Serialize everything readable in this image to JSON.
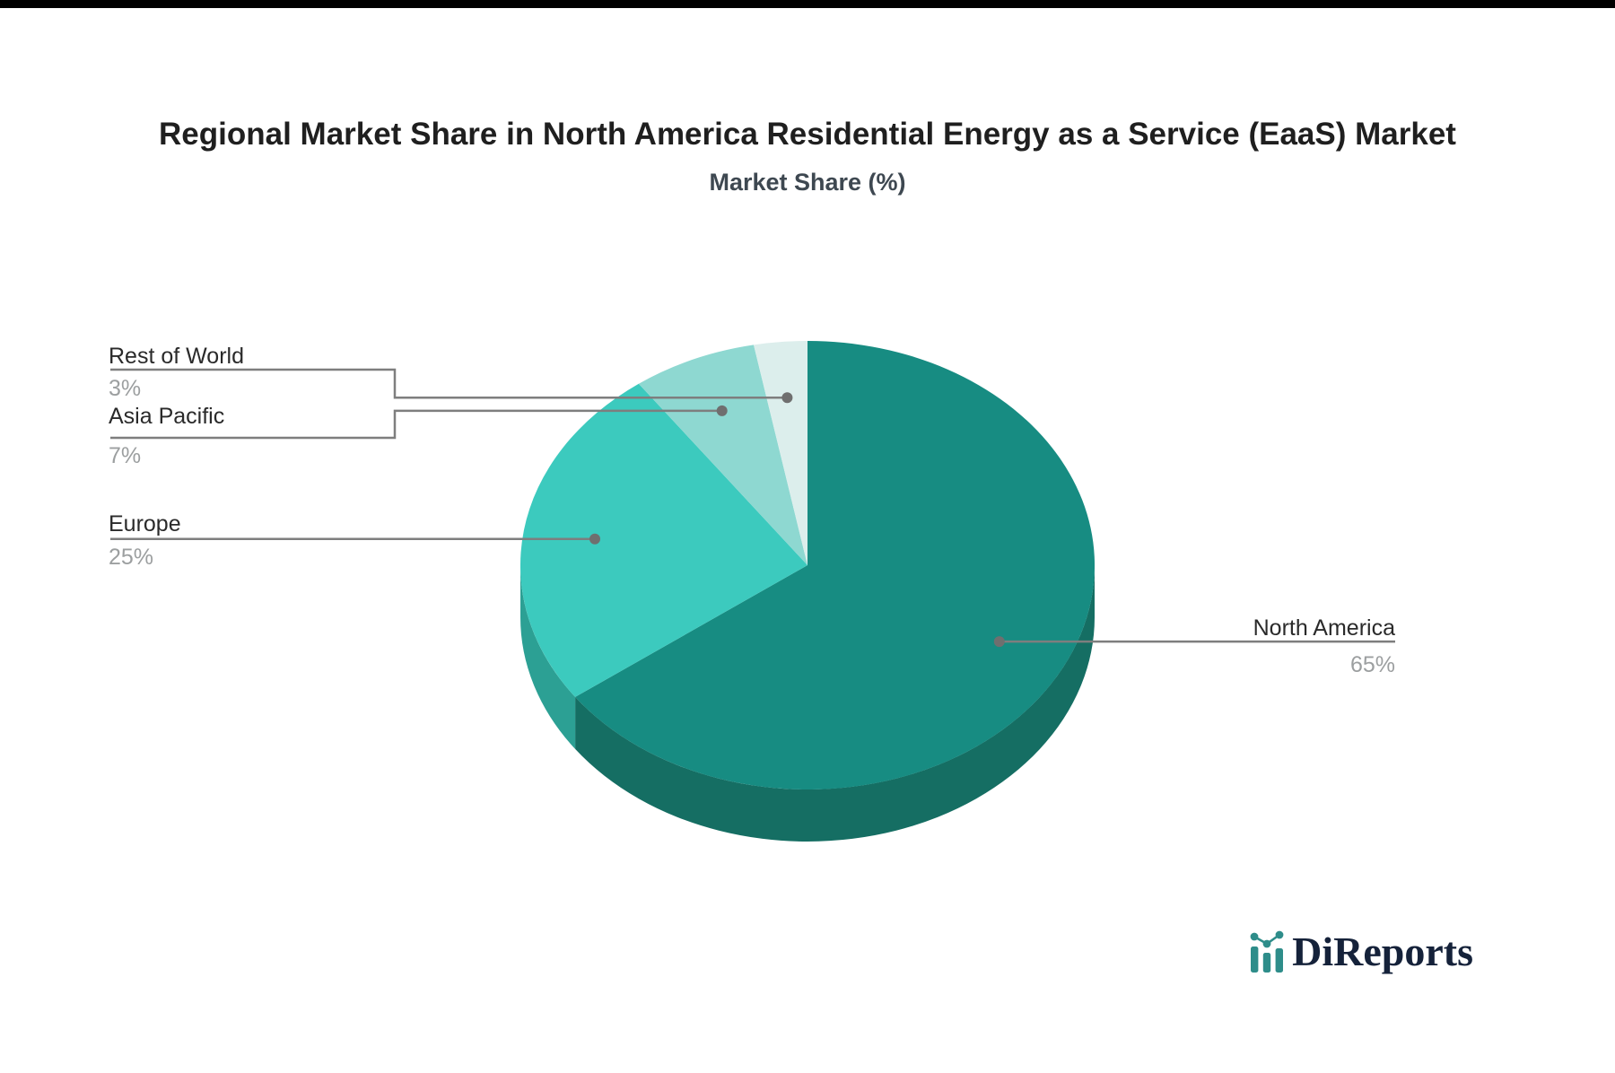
{
  "page": {
    "background_color": "#ffffff",
    "top_bar_color": "#000000"
  },
  "header": {
    "title": "Regional Market Share in North America Residential Energy as a Service (EaaS) Market",
    "subtitle": "Market Share (%)"
  },
  "chart_data": {
    "type": "pie",
    "effect": "3d",
    "title": "Regional Market Share in North America Residential Energy as a Service (EaaS) Market",
    "subtitle": "Market Share (%)",
    "unit": "%",
    "start_angle_deg": 0,
    "direction": "clockwise",
    "legend_position": "callout-labels",
    "slices": [
      {
        "key": "north_america",
        "label": "North America",
        "value": 65,
        "display": "65%",
        "color": "#178C82",
        "side_color": "#156E63"
      },
      {
        "key": "europe",
        "label": "Europe",
        "value": 25,
        "display": "25%",
        "color": "#3CCABE",
        "side_color": "#2CA094"
      },
      {
        "key": "asia_pacific",
        "label": "Asia Pacific",
        "value": 7,
        "display": "7%",
        "color": "#8ED8D1",
        "side_color": "#6FB8B1"
      },
      {
        "key": "rest_of_world",
        "label": "Rest of World",
        "value": 3,
        "display": "3%",
        "color": "#DCEEEC",
        "side_color": "#BCD8D5"
      }
    ],
    "label_color": "#2a2a2a",
    "value_color": "#9c9fa0",
    "leader_line_color": "#7e7e7e",
    "leader_dot_color": "#6f6f6f"
  },
  "logo": {
    "text": "DiReports",
    "icon": "bar-line-chart-icon",
    "icon_color": "#2E8D8A",
    "text_color": "#15223a"
  }
}
